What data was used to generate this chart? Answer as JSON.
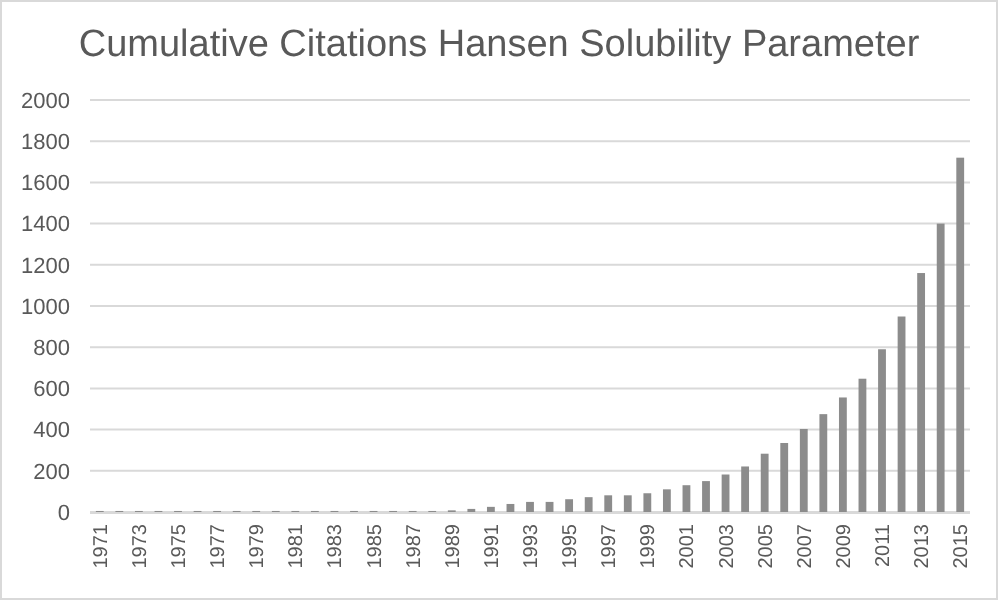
{
  "chart_data": {
    "type": "bar",
    "title": "Cumulative Citations Hansen Solubility Parameter",
    "categories": [
      "1971",
      null,
      "1973",
      null,
      "1975",
      null,
      "1977",
      null,
      "1979",
      null,
      "1981",
      null,
      "1983",
      null,
      "1985",
      null,
      "1987",
      null,
      "1989",
      null,
      "1991",
      null,
      "1993",
      null,
      "1995",
      null,
      "1997",
      null,
      "1999",
      null,
      "2001",
      null,
      "2003",
      null,
      "2005",
      null,
      "2007",
      null,
      "2009",
      null,
      "2011",
      null,
      "2013",
      null,
      "2015"
    ],
    "values": [
      5,
      5,
      5,
      5,
      5,
      5,
      5,
      5,
      5,
      5,
      5,
      5,
      5,
      5,
      5,
      5,
      5,
      5,
      8,
      15,
      25,
      39,
      49,
      49,
      62,
      72,
      81,
      81,
      91,
      110,
      130,
      150,
      182,
      221,
      283,
      335,
      403,
      475,
      556,
      647,
      790,
      949,
      1160,
      1400,
      1720
    ],
    "color": "#8c8c8c",
    "ylim": [
      0,
      2000
    ],
    "yticks": [
      0,
      200,
      400,
      600,
      800,
      1000,
      1200,
      1400,
      1600,
      1800,
      2000
    ],
    "grid": "y"
  }
}
